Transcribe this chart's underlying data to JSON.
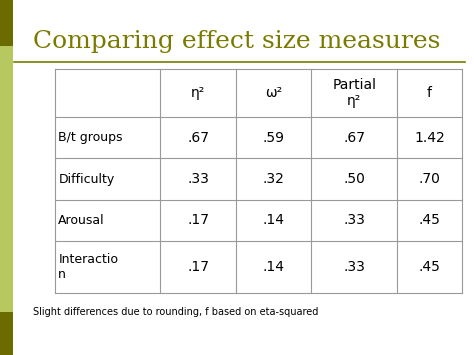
{
  "title": "Comparing effect size measures",
  "title_color": "#7a7a00",
  "title_fontsize": 18,
  "background_color": "#ffffff",
  "col_headers": [
    "η²",
    "ω²",
    "Partial\nη²",
    "f"
  ],
  "row_headers": [
    "B/t groups",
    "Difficulty",
    "Arousal",
    "Interactio\nn"
  ],
  "cell_data": [
    [
      ".67",
      ".59",
      ".67",
      "1.42"
    ],
    [
      ".33",
      ".32",
      ".50",
      ".70"
    ],
    [
      ".17",
      ".14",
      ".33",
      ".45"
    ],
    [
      ".17",
      ".14",
      ".33",
      ".45"
    ]
  ],
  "footnote": "Slight differences due to rounding, f based on eta-squared",
  "footnote_fontsize": 7,
  "cell_fontsize": 10,
  "header_fontsize": 10,
  "row_header_fontsize": 9,
  "line_color": "#999999",
  "left_bar_dark": "#6b6b00",
  "left_bar_light": "#b8c860",
  "title_line_color": "#7a7a00"
}
